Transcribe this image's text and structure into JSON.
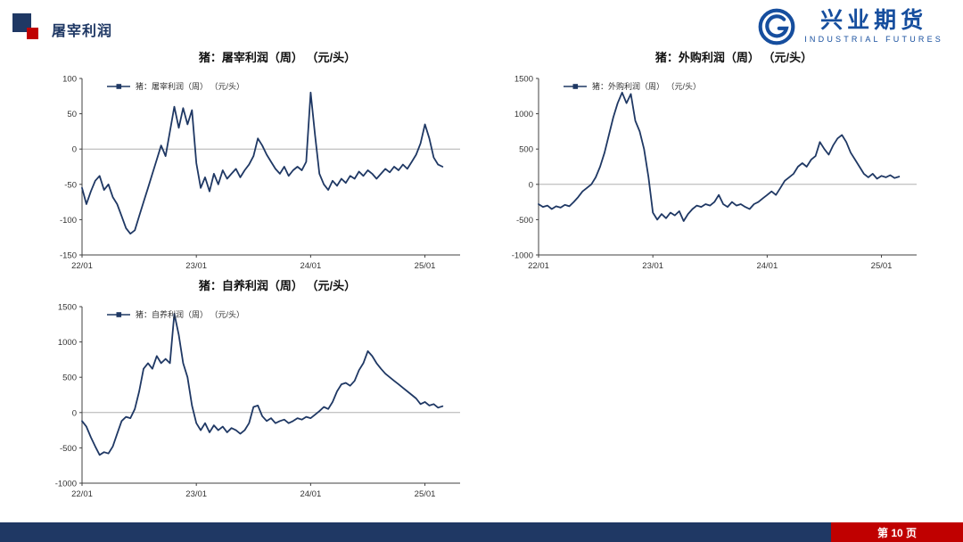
{
  "header": {
    "title": "屠宰利润",
    "logo": {
      "name": "兴业期货",
      "subtitle": "INDUSTRIAL FUTURES"
    }
  },
  "footer": {
    "page_label": "第 10 页"
  },
  "colors": {
    "navy": "#1F3864",
    "red": "#C00000",
    "line": "#1F3864",
    "logo_blue": "#164E9E",
    "zero_line": "#b0b0b0",
    "axis": "#404040"
  },
  "chart_data": [
    {
      "type": "line",
      "title": "猪：屠宰利润（周） （元/头）",
      "legend": "猪：屠宰利润（周） （元/头）",
      "ylabel": "",
      "xlabel": "",
      "ylim": [
        -150,
        100
      ],
      "yticks": [
        100,
        50,
        0,
        -50,
        -100,
        -150
      ],
      "xmax": 86,
      "xticks": [
        {
          "label": "22/01",
          "i": 0
        },
        {
          "label": "23/01",
          "i": 26
        },
        {
          "label": "24/01",
          "i": 52
        },
        {
          "label": "25/01",
          "i": 78
        }
      ],
      "values": [
        -55,
        -78,
        -60,
        -45,
        -38,
        -58,
        -50,
        -68,
        -78,
        -95,
        -112,
        -120,
        -115,
        -95,
        -75,
        -55,
        -35,
        -15,
        5,
        -10,
        25,
        60,
        30,
        58,
        35,
        55,
        -20,
        -55,
        -40,
        -60,
        -35,
        -50,
        -30,
        -42,
        -35,
        -28,
        -40,
        -30,
        -22,
        -10,
        15,
        5,
        -8,
        -18,
        -28,
        -35,
        -25,
        -38,
        -30,
        -25,
        -30,
        -18,
        80,
        20,
        -35,
        -50,
        -58,
        -45,
        -52,
        -42,
        -48,
        -38,
        -42,
        -32,
        -38,
        -30,
        -35,
        -42,
        -35,
        -28,
        -33,
        -25,
        -30,
        -22,
        -28,
        -18,
        -8,
        8,
        35,
        15,
        -12,
        -22,
        -25
      ]
    },
    {
      "type": "line",
      "title": "猪：外购利润（周） （元/头）",
      "legend": "猪：外购利润（周） （元/头）",
      "ylabel": "",
      "xlabel": "",
      "ylim": [
        -1000,
        1500
      ],
      "yticks": [
        1500,
        1000,
        500,
        0,
        -500,
        -1000
      ],
      "xmax": 86,
      "xticks": [
        {
          "label": "22/01",
          "i": 0
        },
        {
          "label": "23/01",
          "i": 26
        },
        {
          "label": "24/01",
          "i": 52
        },
        {
          "label": "25/01",
          "i": 78
        }
      ],
      "values": [
        -280,
        -320,
        -300,
        -350,
        -310,
        -330,
        -290,
        -310,
        -250,
        -180,
        -100,
        -50,
        0,
        100,
        250,
        450,
        700,
        950,
        1150,
        1300,
        1150,
        1280,
        900,
        750,
        500,
        100,
        -400,
        -500,
        -420,
        -480,
        -400,
        -440,
        -380,
        -520,
        -420,
        -350,
        -300,
        -320,
        -280,
        -300,
        -250,
        -150,
        -280,
        -320,
        -250,
        -300,
        -280,
        -320,
        -350,
        -280,
        -250,
        -200,
        -150,
        -100,
        -150,
        -50,
        50,
        100,
        150,
        250,
        300,
        250,
        350,
        400,
        600,
        500,
        420,
        550,
        650,
        700,
        600,
        450,
        350,
        250,
        150,
        100,
        150,
        80,
        120,
        100,
        130,
        90,
        110
      ]
    },
    {
      "type": "line",
      "title": "猪：自养利润（周） （元/头）",
      "legend": "猪：自养利润（周） （元/头）",
      "ylabel": "",
      "xlabel": "",
      "ylim": [
        -1000,
        1500
      ],
      "yticks": [
        1500,
        1000,
        500,
        0,
        -500,
        -1000
      ],
      "xmax": 86,
      "xticks": [
        {
          "label": "22/01",
          "i": 0
        },
        {
          "label": "23/01",
          "i": 26
        },
        {
          "label": "24/01",
          "i": 52
        },
        {
          "label": "25/01",
          "i": 78
        }
      ],
      "values": [
        -120,
        -200,
        -350,
        -480,
        -600,
        -560,
        -580,
        -480,
        -300,
        -120,
        -60,
        -80,
        50,
        300,
        620,
        700,
        620,
        800,
        700,
        760,
        700,
        1400,
        1100,
        700,
        500,
        100,
        -150,
        -250,
        -150,
        -280,
        -180,
        -250,
        -200,
        -280,
        -220,
        -250,
        -300,
        -250,
        -150,
        80,
        100,
        -50,
        -120,
        -80,
        -150,
        -120,
        -100,
        -150,
        -120,
        -80,
        -100,
        -60,
        -80,
        -30,
        20,
        80,
        50,
        150,
        300,
        400,
        420,
        380,
        450,
        600,
        700,
        870,
        800,
        700,
        620,
        550,
        500,
        450,
        400,
        350,
        300,
        250,
        200,
        120,
        150,
        100,
        120,
        70,
        90
      ]
    }
  ]
}
